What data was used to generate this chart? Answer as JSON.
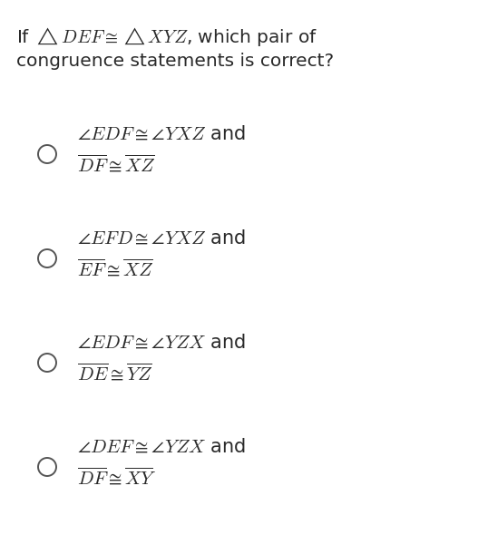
{
  "bg_color": "#ffffff",
  "text_color": "#2a2a2a",
  "circle_color": "#555555",
  "title_line1": "If $\\triangle DEF \\cong \\triangle XYZ$, which pair of",
  "title_line2": "congruence statements is correct?",
  "options": [
    {
      "line1": "$\\angle EDF \\cong \\angle YXZ$ and",
      "line2": "$\\overline{DF} \\cong \\overline{XZ}$"
    },
    {
      "line1": "$\\angle EFD \\cong \\angle YXZ$ and",
      "line2": "$\\overline{EF} \\cong \\overline{XZ}$"
    },
    {
      "line1": "$\\angle EDF \\cong \\angle YZX$ and",
      "line2": "$\\overline{DE} \\cong \\overline{YZ}$"
    },
    {
      "line1": "$\\angle DEF \\cong \\angle YZX$ and",
      "line2": "$\\overline{DF} \\cong \\overline{XY}$"
    }
  ],
  "title_fontsize": 14.5,
  "option_fontsize": 15.0,
  "fig_width": 5.27,
  "fig_height": 6.0,
  "dpi": 100
}
